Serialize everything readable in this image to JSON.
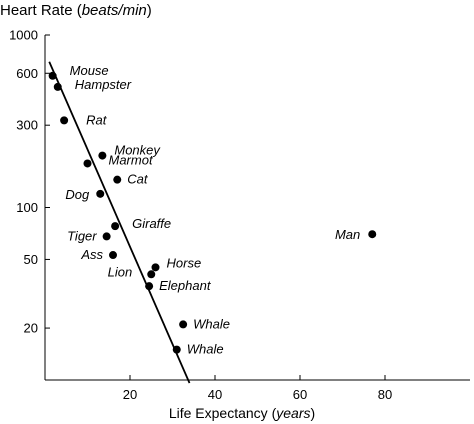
{
  "chart_data": {
    "type": "scatter",
    "title": "Heart Rate",
    "title_unit": "beats/min",
    "xlabel": "Life Expectancy",
    "xlabel_unit": "years",
    "y_scale": "log",
    "xlim": [
      0,
      100
    ],
    "ylim": [
      10,
      1000
    ],
    "x_ticks": [
      20,
      40,
      60,
      80
    ],
    "y_ticks": [
      20,
      50,
      100,
      300,
      600,
      1000
    ],
    "grid": false,
    "points": [
      {
        "label": "Mouse",
        "x": 1.8,
        "y": 580
      },
      {
        "label": "Hampster",
        "x": 3,
        "y": 500
      },
      {
        "label": "Rat",
        "x": 4.5,
        "y": 320
      },
      {
        "label": "Monkey",
        "x": 13.5,
        "y": 200
      },
      {
        "label": "Marmot",
        "x": 10,
        "y": 180
      },
      {
        "label": "Cat",
        "x": 17,
        "y": 145
      },
      {
        "label": "Dog",
        "x": 13,
        "y": 120
      },
      {
        "label": "Giraffe",
        "x": 16.5,
        "y": 78
      },
      {
        "label": "Tiger",
        "x": 14.5,
        "y": 68
      },
      {
        "label": "Ass",
        "x": 16,
        "y": 53
      },
      {
        "label": "Horse",
        "x": 26,
        "y": 45
      },
      {
        "label": "Lion",
        "x": 25,
        "y": 41
      },
      {
        "label": "Elephant",
        "x": 24.5,
        "y": 35
      },
      {
        "label": "Whale",
        "x": 32.5,
        "y": 21
      },
      {
        "label": "Whale",
        "x": 31,
        "y": 15
      },
      {
        "label": "Man",
        "x": 77,
        "y": 70
      }
    ],
    "trend_line": {
      "x": [
        1,
        34
      ],
      "y": [
        700,
        9.6
      ]
    }
  }
}
